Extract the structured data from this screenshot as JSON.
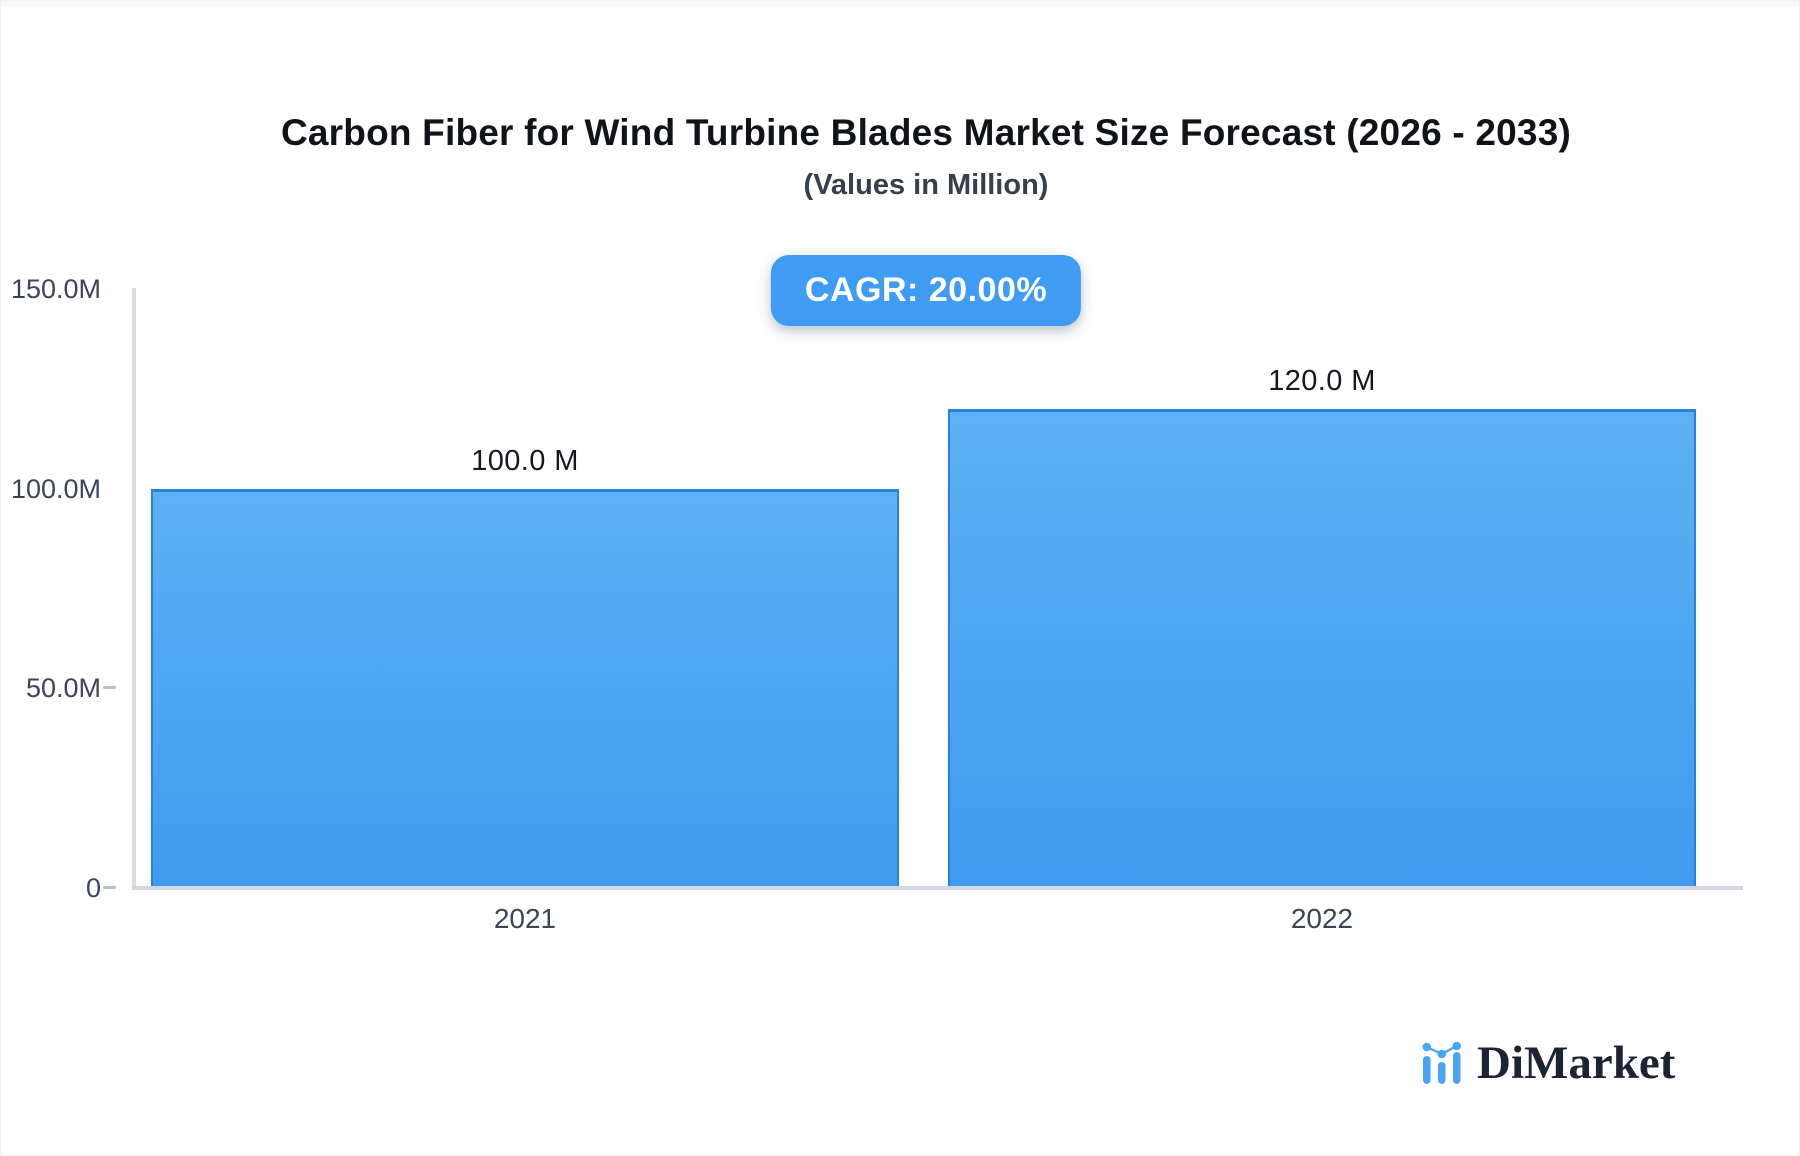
{
  "header": {
    "title": "Carbon Fiber for Wind Turbine Blades Market Size Forecast (2026 - 2033)",
    "subtitle": "(Values in Million)",
    "cagr_badge_label": "CAGR: 20.00%"
  },
  "chart_data": {
    "type": "bar",
    "title": "Carbon Fiber for Wind Turbine Blades Market Size Forecast (2026 - 2033)",
    "subtitle": "(Values in Million)",
    "unit": "Million",
    "categories": [
      "2021",
      "2022"
    ],
    "values": [
      100.0,
      120.0
    ],
    "bar_labels": [
      "100.0 M",
      "120.0 M"
    ],
    "cagr_percent": "20.00%",
    "ylim": [
      0,
      150
    ],
    "y_ticks": [
      {
        "label": "150.0M",
        "value": 150,
        "dash": false
      },
      {
        "label": "100.0M",
        "value": 100,
        "dash": false
      },
      {
        "label": "50.0M",
        "value": 50,
        "dash": true
      },
      {
        "label": "0",
        "value": 0,
        "dash": true
      }
    ],
    "grid": false,
    "legend": false,
    "bar_fill_top": "#5db0f3",
    "bar_fill_bottom": "#3f9cf0",
    "bar_border_color": "#2b80d9",
    "axis_color": "#d3d7dd",
    "badge_color": "#3f9cf2"
  },
  "footer": {
    "brand_name": "DiMarket",
    "brand_icon": "mini-bar-chart-trend-icon",
    "brand_icon_color": "#4aa3f5"
  }
}
